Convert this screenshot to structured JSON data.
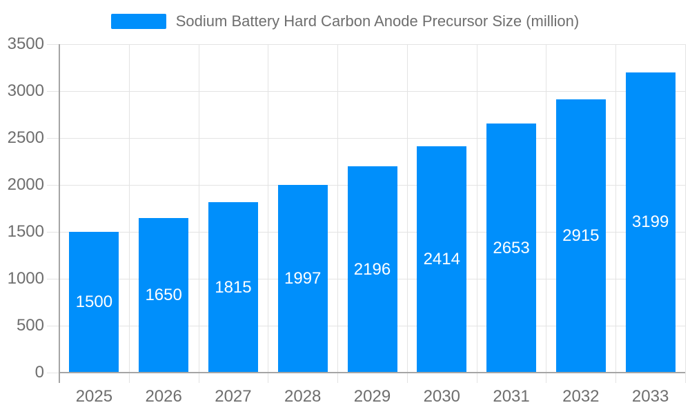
{
  "legend": {
    "label": "Sodium Battery Hard Carbon Anode Precursor Size (million)",
    "swatch_color": "#008FFB"
  },
  "chart_data": {
    "type": "bar",
    "title": "Sodium Battery Hard Carbon Anode Precursor Size (million)",
    "categories": [
      "2025",
      "2026",
      "2027",
      "2028",
      "2029",
      "2030",
      "2031",
      "2032",
      "2033"
    ],
    "series": [
      {
        "name": "Sodium Battery Hard Carbon Anode Precursor Size (million)",
        "values": [
          1500,
          1650,
          1815,
          1997,
          2196,
          2414,
          2653,
          2915,
          3199
        ]
      }
    ],
    "value_labels_shown": true,
    "xlabel": "",
    "ylabel": "",
    "ylim": [
      0,
      3500
    ],
    "ytick_step": 500,
    "yticks": [
      0,
      500,
      1000,
      1500,
      2000,
      2500,
      3000,
      3500
    ],
    "grid": true,
    "legend_position": "top",
    "colors": {
      "bar": "#008FFB",
      "grid": "#e3e3e3",
      "axis": "#a5a5a5",
      "tick_label": "#6e6e6e",
      "legend_text": "#6e6e6e",
      "value_label": "#ffffff",
      "background": "#ffffff"
    }
  }
}
